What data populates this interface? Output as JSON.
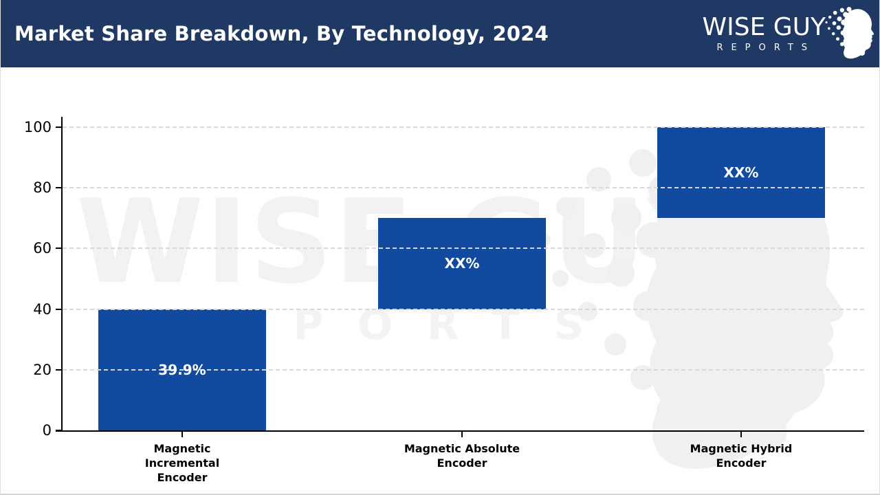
{
  "header": {
    "title": "Market Share Breakdown, By Technology, 2024",
    "bg_color": "#1F3864",
    "title_color": "#FFFFFF",
    "logo": {
      "brand": "WISE GUY",
      "sub": "REPORTS"
    }
  },
  "watermark": {
    "brand": "WISE GUY",
    "sub": "REPORTS"
  },
  "chart_data": {
    "type": "bar",
    "variant": "floating-segment-bars",
    "title": "Market Share Breakdown, By Technology, 2024",
    "xlabel": "",
    "ylabel": "",
    "categories": [
      "Magnetic Incremental Encoder",
      "Magnetic Absolute Encoder",
      "Magnetic Hybrid Encoder"
    ],
    "bars": [
      {
        "category": "Magnetic Incremental Encoder",
        "category_lines": [
          "Magnetic",
          "Incremental",
          "Encoder"
        ],
        "start": 0,
        "end": 39.9,
        "label": "39.9%"
      },
      {
        "category": "Magnetic Absolute Encoder",
        "category_lines": [
          "Magnetic Absolute",
          "Encoder"
        ],
        "start": 40,
        "end": 70,
        "label": "XX%"
      },
      {
        "category": "Magnetic Hybrid Encoder",
        "category_lines": [
          "Magnetic Hybrid",
          "Encoder"
        ],
        "start": 70,
        "end": 100,
        "label": "XX%"
      }
    ],
    "yticks": [
      0,
      20,
      40,
      60,
      80,
      100
    ],
    "ylim": [
      0,
      103.4
    ],
    "grid": true,
    "legend": false,
    "colors": {
      "bar": "#114A9F",
      "bar_label": "#FFFFFF",
      "grid": "#D8D8D8",
      "axis": "#000000",
      "tick_label": "#000000"
    }
  }
}
